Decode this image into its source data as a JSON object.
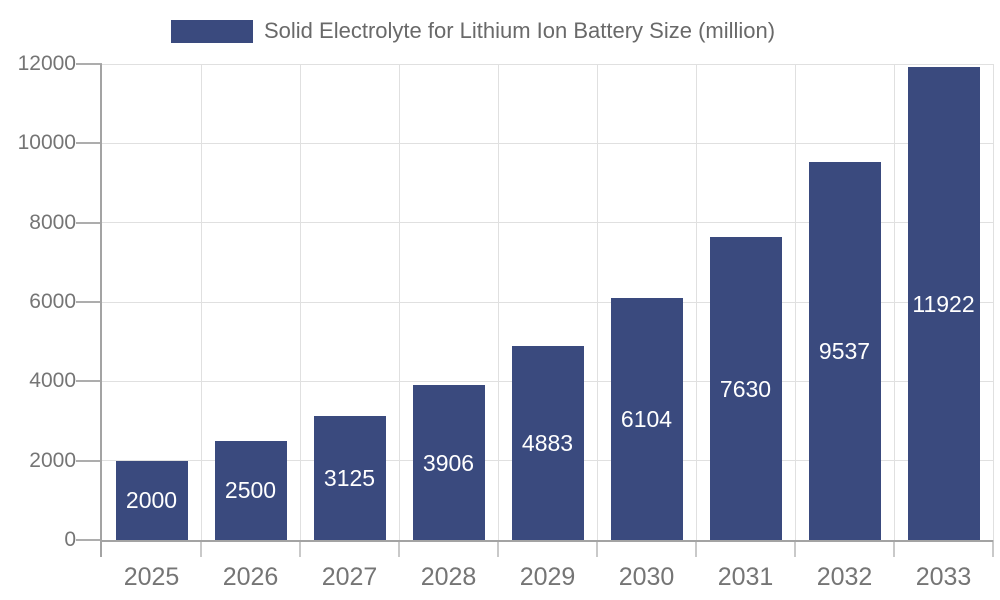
{
  "legend": {
    "label": "Solid Electrolyte for Lithium Ion Battery Size (million)"
  },
  "chart_data": {
    "type": "bar",
    "title": "Solid Electrolyte for Lithium Ion Battery Size (million)",
    "series_name": "Solid Electrolyte for Lithium Ion Battery Size (million)",
    "categories": [
      "2025",
      "2026",
      "2027",
      "2028",
      "2029",
      "2030",
      "2031",
      "2032",
      "2033"
    ],
    "values": [
      2000,
      2500,
      3125,
      3906,
      4883,
      6104,
      7630,
      9537,
      11922
    ],
    "xlabel": "",
    "ylabel": "",
    "ylim": [
      0,
      12000
    ],
    "yticks": [
      0,
      2000,
      4000,
      6000,
      8000,
      10000,
      12000
    ],
    "grid": true,
    "legend_position": "top",
    "bar_color": "#3A4A7E",
    "value_label_color": "#FFFFFF",
    "axis_text_color": "#757575",
    "legend_text_color": "#696969",
    "grid_color": "#E0E0E0",
    "axis_line_color": "#A3A3A3"
  }
}
